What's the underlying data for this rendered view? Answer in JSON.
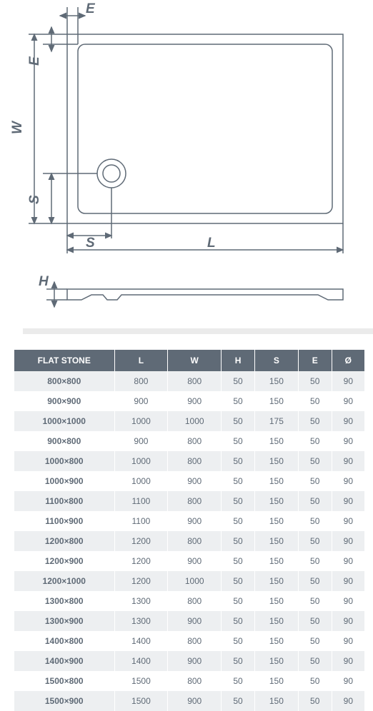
{
  "diagram": {
    "labels": {
      "E_top": "E",
      "E_left": "E",
      "W": "W",
      "S_left": "S",
      "S_bottom": "S",
      "L": "L",
      "H": "H"
    },
    "stroke": "#5f6a76",
    "stroke_width": 1.5,
    "fill_bg": "#ffffff"
  },
  "table": {
    "title": "FLAT STONE",
    "header_bg": "#5f6a76",
    "header_fg": "#ffffff",
    "row_odd_bg": "#edeff1",
    "row_even_bg": "#ffffff",
    "cell_fg": "#5f6a76",
    "columns": [
      "L",
      "W",
      "H",
      "S",
      "E",
      "Ø"
    ],
    "rows": [
      {
        "name": "800×800",
        "L": "800",
        "W": "800",
        "H": "50",
        "S": "150",
        "E": "50",
        "O": "90"
      },
      {
        "name": "900×900",
        "L": "900",
        "W": "900",
        "H": "50",
        "S": "150",
        "E": "50",
        "O": "90"
      },
      {
        "name": "1000×1000",
        "L": "1000",
        "W": "1000",
        "H": "50",
        "S": "175",
        "E": "50",
        "O": "90"
      },
      {
        "name": "900×800",
        "L": "900",
        "W": "800",
        "H": "50",
        "S": "150",
        "E": "50",
        "O": "90"
      },
      {
        "name": "1000×800",
        "L": "1000",
        "W": "800",
        "H": "50",
        "S": "150",
        "E": "50",
        "O": "90"
      },
      {
        "name": "1000×900",
        "L": "1000",
        "W": "900",
        "H": "50",
        "S": "150",
        "E": "50",
        "O": "90"
      },
      {
        "name": "1100×800",
        "L": "1100",
        "W": "800",
        "H": "50",
        "S": "150",
        "E": "50",
        "O": "90"
      },
      {
        "name": "1100×900",
        "L": "1100",
        "W": "900",
        "H": "50",
        "S": "150",
        "E": "50",
        "O": "90"
      },
      {
        "name": "1200×800",
        "L": "1200",
        "W": "800",
        "H": "50",
        "S": "150",
        "E": "50",
        "O": "90"
      },
      {
        "name": "1200×900",
        "L": "1200",
        "W": "900",
        "H": "50",
        "S": "150",
        "E": "50",
        "O": "90"
      },
      {
        "name": "1200×1000",
        "L": "1200",
        "W": "1000",
        "H": "50",
        "S": "150",
        "E": "50",
        "O": "90"
      },
      {
        "name": "1300×800",
        "L": "1300",
        "W": "800",
        "H": "50",
        "S": "150",
        "E": "50",
        "O": "90"
      },
      {
        "name": "1300×900",
        "L": "1300",
        "W": "900",
        "H": "50",
        "S": "150",
        "E": "50",
        "O": "90"
      },
      {
        "name": "1400×800",
        "L": "1400",
        "W": "800",
        "H": "50",
        "S": "150",
        "E": "50",
        "O": "90"
      },
      {
        "name": "1400×900",
        "L": "1400",
        "W": "900",
        "H": "50",
        "S": "150",
        "E": "50",
        "O": "90"
      },
      {
        "name": "1500×800",
        "L": "1500",
        "W": "800",
        "H": "50",
        "S": "150",
        "E": "50",
        "O": "90"
      },
      {
        "name": "1500×900",
        "L": "1500",
        "W": "900",
        "H": "50",
        "S": "150",
        "E": "50",
        "O": "90"
      }
    ]
  }
}
